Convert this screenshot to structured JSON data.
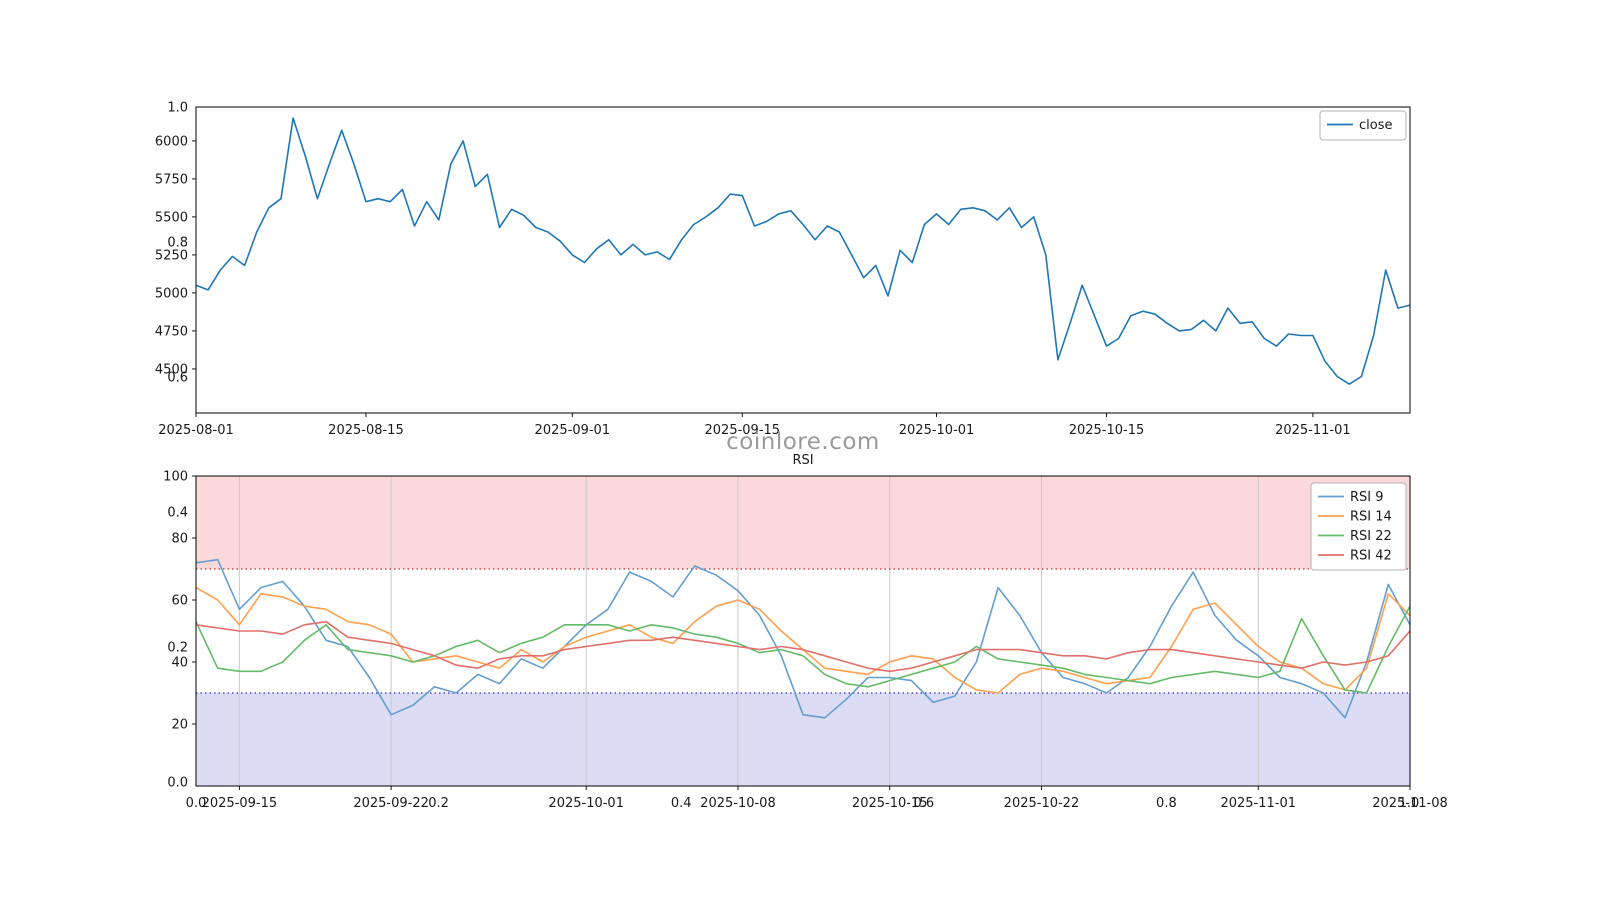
{
  "watermark": "coinlore.com",
  "rsi_title": "RSI",
  "figure_ticks": {
    "y_labels": [
      "1.0",
      "0.8",
      "0.6",
      "0.4",
      "0.2",
      "0.0"
    ],
    "x_labels": [
      "0.0",
      "0.2",
      "0.4",
      "0.6",
      "0.8",
      "1.0"
    ]
  },
  "chart_data": [
    {
      "type": "line",
      "title": "",
      "grid": false,
      "start_date": "2025-08-01",
      "end_date": "2025-11-09",
      "ylim": [
        4210,
        6223
      ],
      "y_ticks": [
        4500,
        4750,
        5000,
        5250,
        5500,
        5750,
        6000
      ],
      "x_ticks": [
        {
          "label": "2025-08-01",
          "day": 0
        },
        {
          "label": "2025-08-15",
          "day": 14
        },
        {
          "label": "2025-09-01",
          "day": 31
        },
        {
          "label": "2025-09-15",
          "day": 45
        },
        {
          "label": "2025-10-01",
          "day": 61
        },
        {
          "label": "2025-10-15",
          "day": 75
        },
        {
          "label": "2025-11-01",
          "day": 92
        }
      ],
      "series": [
        {
          "name": "close",
          "color": "#1f77b4",
          "values": [
            5050,
            5020,
            5150,
            5240,
            5180,
            5400,
            5560,
            5620,
            6150,
            5900,
            5620,
            5850,
            6070,
            5850,
            5600,
            5620,
            5600,
            5680,
            5440,
            5600,
            5480,
            5850,
            6000,
            5700,
            5780,
            5430,
            5550,
            5510,
            5430,
            5400,
            5340,
            5250,
            5200,
            5290,
            5350,
            5250,
            5320,
            5250,
            5270,
            5220,
            5350,
            5450,
            5500,
            5560,
            5650,
            5640,
            5440,
            5470,
            5520,
            5540,
            5450,
            5350,
            5440,
            5400,
            5250,
            5100,
            5180,
            4980,
            5280,
            5200,
            5450,
            5520,
            5450,
            5550,
            5560,
            5540,
            5480,
            5560,
            5430,
            5500,
            5250,
            4560,
            4800,
            5050,
            4850,
            4650,
            4700,
            4850,
            4880,
            4860,
            4800,
            4750,
            4760,
            4820,
            4750,
            4900,
            4800,
            4810,
            4700,
            4650,
            4730,
            4720,
            4720,
            4550,
            4450,
            4400,
            4450,
            4720,
            5150,
            4900,
            4920
          ]
        }
      ]
    },
    {
      "type": "line",
      "title": "RSI",
      "grid": true,
      "start_date": "2025-09-13",
      "end_date": "2025-11-08",
      "ylim": [
        0,
        100
      ],
      "y_ticks": [
        20,
        40,
        60,
        80,
        100
      ],
      "x_ticks": [
        {
          "label": "2025-09-15",
          "day": 2
        },
        {
          "label": "2025-09-22",
          "day": 9
        },
        {
          "label": "2025-10-01",
          "day": 18
        },
        {
          "label": "2025-10-08",
          "day": 25
        },
        {
          "label": "2025-10-15",
          "day": 32
        },
        {
          "label": "2025-10-22",
          "day": 39
        },
        {
          "label": "2025-11-01",
          "day": 49
        },
        {
          "label": "2025-11-08",
          "day": 56
        }
      ],
      "bands": [
        {
          "from": 70,
          "to": 100,
          "color": "#fbd9da"
        },
        {
          "from": 0,
          "to": 30,
          "color": "#dcdcf5"
        }
      ],
      "hlines": [
        {
          "y": 70,
          "color": "#cc2b2b"
        },
        {
          "y": 30,
          "color": "#2b2bcc"
        }
      ],
      "series": [
        {
          "name": "RSI 9",
          "color": "#649fd0",
          "values": [
            72,
            73,
            57,
            64,
            66,
            58,
            47,
            45,
            35,
            23,
            26,
            32,
            30,
            36,
            33,
            41,
            38,
            45,
            52,
            57,
            69,
            66,
            61,
            71,
            68,
            63,
            55,
            42,
            23,
            22,
            28,
            35,
            35,
            34,
            27,
            29,
            40,
            64,
            55,
            43,
            35,
            33,
            30,
            35,
            45,
            58,
            69,
            55,
            47,
            42,
            35,
            33,
            30,
            22,
            40,
            65,
            52
          ]
        },
        {
          "name": "RSI 14",
          "color": "#ffa04f",
          "values": [
            64,
            60,
            52,
            62,
            61,
            58,
            57,
            53,
            52,
            49,
            40,
            41,
            42,
            40,
            38,
            44,
            40,
            45,
            48,
            50,
            52,
            48,
            46,
            53,
            58,
            60,
            57,
            50,
            44,
            38,
            37,
            36,
            40,
            42,
            41,
            35,
            31,
            30,
            36,
            38,
            37,
            35,
            33,
            34,
            35,
            45,
            57,
            59,
            52,
            45,
            40,
            38,
            33,
            31,
            38,
            62,
            55
          ]
        },
        {
          "name": "RSI 22",
          "color": "#65bb68",
          "values": [
            53,
            38,
            37,
            37,
            40,
            47,
            52,
            44,
            43,
            42,
            40,
            42,
            45,
            47,
            43,
            46,
            48,
            52,
            52,
            52,
            50,
            52,
            51,
            49,
            48,
            46,
            43,
            44,
            42,
            36,
            33,
            32,
            34,
            36,
            38,
            40,
            45,
            41,
            40,
            39,
            38,
            36,
            35,
            34,
            33,
            35,
            36,
            37,
            36,
            35,
            37,
            54,
            42,
            31,
            30,
            45,
            58
          ]
        },
        {
          "name": "RSI 42",
          "color": "#e1706a",
          "values": [
            52,
            51,
            50,
            50,
            49,
            52,
            53,
            48,
            47,
            46,
            44,
            42,
            39,
            38,
            41,
            42,
            42,
            44,
            45,
            46,
            47,
            47,
            48,
            47,
            46,
            45,
            44,
            45,
            44,
            42,
            40,
            38,
            37,
            38,
            40,
            42,
            44,
            44,
            44,
            43,
            42,
            42,
            41,
            43,
            44,
            44,
            43,
            42,
            41,
            40,
            39,
            38,
            40,
            39,
            40,
            42,
            50
          ]
        }
      ]
    }
  ]
}
